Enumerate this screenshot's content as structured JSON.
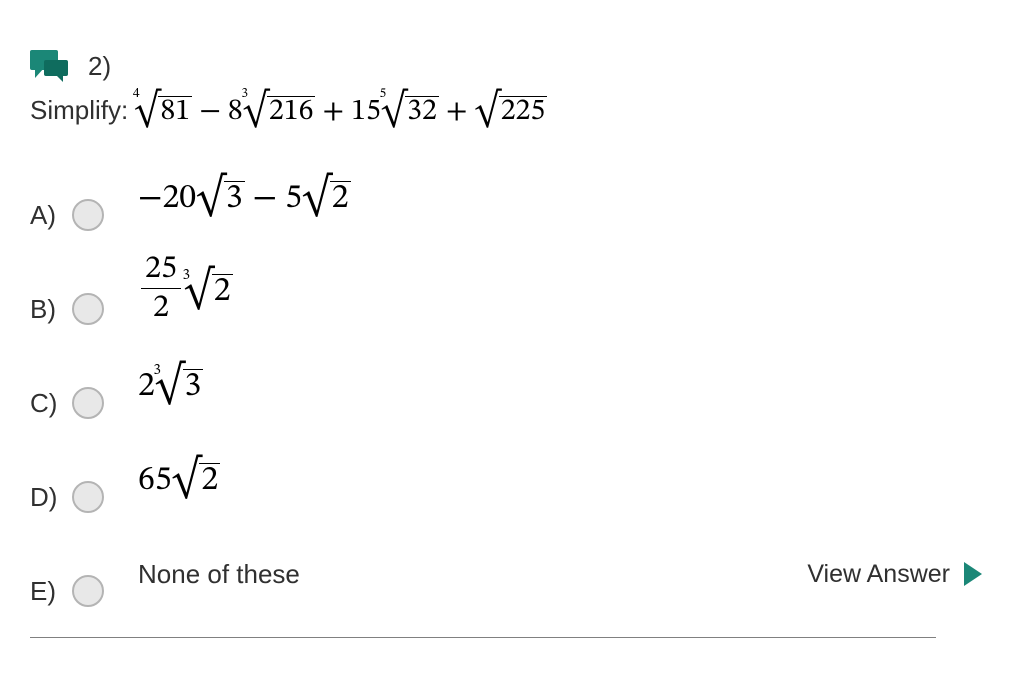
{
  "colors": {
    "icon_teal": "#1b8777",
    "icon_teal_dark": "#0f6c5e",
    "radio_border": "#b4b4b4",
    "radio_fill": "#e8e8e8",
    "text": "#303030",
    "math_text": "#000000",
    "divider": "#808080",
    "bg": "#ffffff"
  },
  "typography": {
    "base_fontsize_pt": 20,
    "math_fontsize_pt": 22,
    "math_big_fontsize_pt": 26,
    "font_family_ui": "Arial",
    "font_family_math": "Cambria Math"
  },
  "question": {
    "number": "2)",
    "prompt_label": "Simplify: ",
    "expr": {
      "terms": [
        {
          "coef": "",
          "index": "4",
          "radicand": "81",
          "op_after": " − "
        },
        {
          "coef": "8",
          "index": "3",
          "radicand": "216",
          "op_after": " + "
        },
        {
          "coef": "15",
          "index": "5",
          "radicand": "32",
          "op_after": " + "
        },
        {
          "coef": "",
          "index": "",
          "radicand": "225",
          "op_after": ""
        }
      ]
    }
  },
  "options": [
    {
      "letter": "A)",
      "kind": "expr",
      "parts": [
        {
          "text": "−20"
        },
        {
          "root": {
            "index": "",
            "radicand": "3"
          }
        },
        {
          "text": " − 5"
        },
        {
          "root": {
            "index": "",
            "radicand": "2"
          }
        }
      ]
    },
    {
      "letter": "B)",
      "kind": "expr",
      "parts": [
        {
          "frac": {
            "num": "25",
            "den": "2"
          }
        },
        {
          "root": {
            "index": "3",
            "radicand": "2"
          }
        }
      ]
    },
    {
      "letter": "C)",
      "kind": "expr",
      "parts": [
        {
          "text": "2"
        },
        {
          "root": {
            "index": "3",
            "radicand": "3"
          }
        }
      ]
    },
    {
      "letter": "D)",
      "kind": "expr",
      "parts": [
        {
          "text": "65"
        },
        {
          "root": {
            "index": "",
            "radicand": "2"
          }
        }
      ]
    },
    {
      "letter": "E)",
      "kind": "text",
      "text": "None of these"
    }
  ],
  "view_answer": "View Answer"
}
